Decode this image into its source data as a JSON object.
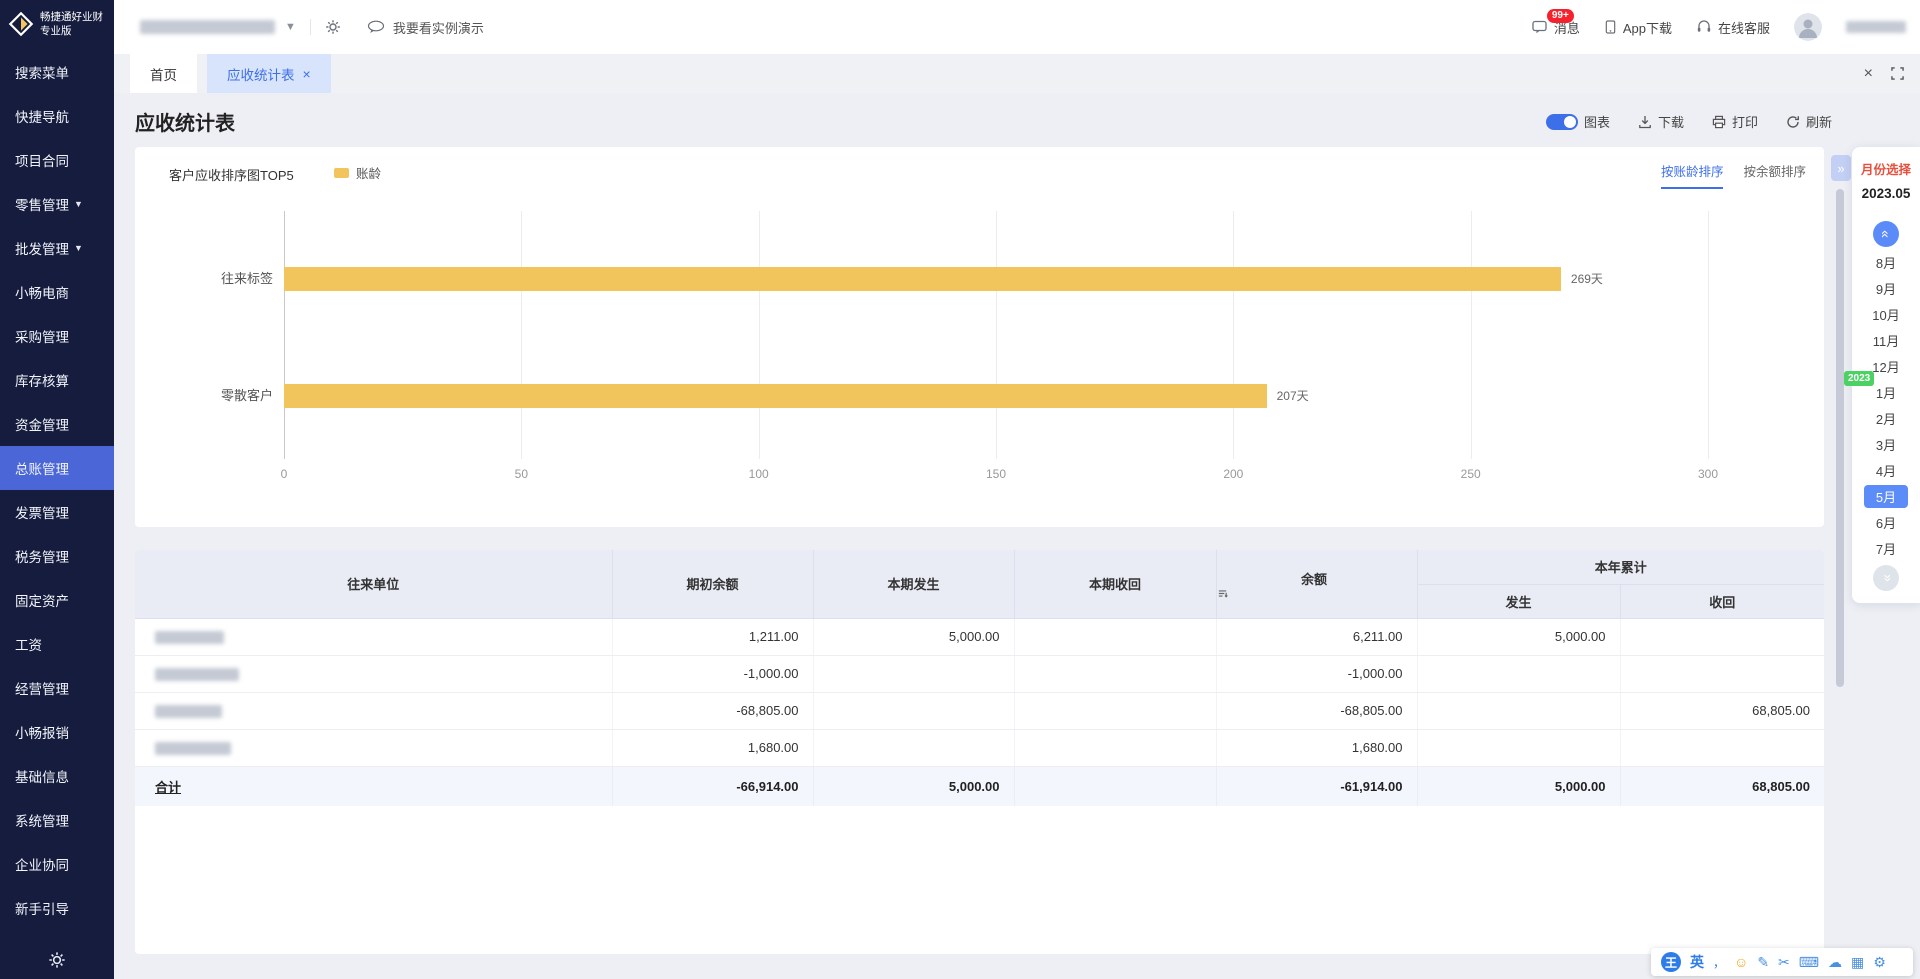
{
  "colors": {
    "sidebar_bg": "#151c3e",
    "accent_blue": "#3d6fe8",
    "nav_active_bg": "#4b66d6",
    "bar_yellow": "#f2c55c",
    "tab_active_bg": "#d8e4fb",
    "badge_red": "#f5222d",
    "month_selected_bg": "#5b8cf8",
    "month_title_red": "#e6503c",
    "year_badge_green": "#4cd263",
    "table_header_bg": "#e9ecf5",
    "total_row_bg": "#f3f6fd"
  },
  "brand": {
    "name_line1": "畅捷通好业财",
    "name_line2": "专业版"
  },
  "topbar": {
    "company_redacted": true,
    "demo_label": "我要看实例演示",
    "message_label": "消息",
    "message_badge": "99+",
    "app_download_label": "App下载",
    "service_label": "在线客服",
    "username_redacted": true
  },
  "sidebar": {
    "items": [
      {
        "label": "搜索菜单",
        "active": false,
        "arrow": false
      },
      {
        "label": "快捷导航",
        "active": false,
        "arrow": false
      },
      {
        "label": "项目合同",
        "active": false,
        "arrow": false
      },
      {
        "label": "零售管理",
        "active": false,
        "arrow": true
      },
      {
        "label": "批发管理",
        "active": false,
        "arrow": true
      },
      {
        "label": "小畅电商",
        "active": false,
        "arrow": false
      },
      {
        "label": "采购管理",
        "active": false,
        "arrow": false
      },
      {
        "label": "库存核算",
        "active": false,
        "arrow": false
      },
      {
        "label": "资金管理",
        "active": false,
        "arrow": false
      },
      {
        "label": "总账管理",
        "active": true,
        "arrow": false
      },
      {
        "label": "发票管理",
        "active": false,
        "arrow": false
      },
      {
        "label": "税务管理",
        "active": false,
        "arrow": false
      },
      {
        "label": "固定资产",
        "active": false,
        "arrow": false
      },
      {
        "label": "工资",
        "active": false,
        "arrow": false
      },
      {
        "label": "经营管理",
        "active": false,
        "arrow": false
      },
      {
        "label": "小畅报销",
        "active": false,
        "arrow": false
      },
      {
        "label": "基础信息",
        "active": false,
        "arrow": false
      },
      {
        "label": "系统管理",
        "active": false,
        "arrow": false
      },
      {
        "label": "企业协同",
        "active": false,
        "arrow": false
      },
      {
        "label": "新手引导",
        "active": false,
        "arrow": false
      }
    ]
  },
  "tabs": {
    "items": [
      {
        "label": "首页",
        "active": false,
        "closable": false
      },
      {
        "label": "应收统计表",
        "active": true,
        "closable": true
      }
    ]
  },
  "page": {
    "title": "应收统计表",
    "controls": {
      "chart_toggle_label": "图表",
      "download_label": "下载",
      "print_label": "打印",
      "refresh_label": "刷新"
    }
  },
  "chart": {
    "legend_title": "客户应收排序图TOP5",
    "series_name": "账龄",
    "sort_tabs": [
      {
        "label": "按账龄排序",
        "active": true
      },
      {
        "label": "按余额排序",
        "active": false
      }
    ],
    "chart_data": {
      "type": "bar",
      "orientation": "horizontal",
      "categories": [
        "往来标签",
        "零散客户"
      ],
      "values": [
        269,
        207
      ],
      "value_labels": [
        "269天",
        "207天"
      ],
      "series": [
        {
          "name": "账龄",
          "values": [
            269,
            207
          ]
        }
      ],
      "unit": "天",
      "x_ticks": [
        0,
        50,
        100,
        150,
        200,
        250,
        300
      ],
      "xlim": [
        0,
        300
      ],
      "grid": true,
      "series_color": "#f2c55c"
    }
  },
  "table": {
    "headers": {
      "col_partner": "往来单位",
      "col_beginning": "期初余额",
      "col_current": "本期发生",
      "col_received": "本期收回",
      "col_balance": "余额",
      "col_ytd": "本年累计",
      "col_ytd_occur": "发生",
      "col_ytd_received": "收回"
    },
    "rows": [
      {
        "name_redacted": true,
        "beginning": "1,211.00",
        "current": "5,000.00",
        "received": "",
        "balance": "6,211.00",
        "ytd_occur": "5,000.00",
        "ytd_received": ""
      },
      {
        "name_redacted": true,
        "beginning": "-1,000.00",
        "current": "",
        "received": "",
        "balance": "-1,000.00",
        "ytd_occur": "",
        "ytd_received": ""
      },
      {
        "name_redacted": true,
        "beginning": "-68,805.00",
        "current": "",
        "received": "",
        "balance": "-68,805.00",
        "ytd_occur": "",
        "ytd_received": "68,805.00"
      },
      {
        "name_redacted": true,
        "beginning": "1,680.00",
        "current": "",
        "received": "",
        "balance": "1,680.00",
        "ytd_occur": "",
        "ytd_received": ""
      }
    ],
    "total": {
      "label": "合计",
      "beginning": "-66,914.00",
      "current": "5,000.00",
      "received": "",
      "balance": "-61,914.00",
      "ytd_occur": "5,000.00",
      "ytd_received": "68,805.00"
    }
  },
  "month_panel": {
    "title": "月份选择",
    "current": "2023.05",
    "year_badge": "2023",
    "months": [
      {
        "label": "8月",
        "selected": false
      },
      {
        "label": "9月",
        "selected": false
      },
      {
        "label": "10月",
        "selected": false
      },
      {
        "label": "11月",
        "selected": false
      },
      {
        "label": "12月",
        "selected": false
      },
      {
        "label": "1月",
        "selected": false
      },
      {
        "label": "2月",
        "selected": false
      },
      {
        "label": "3月",
        "selected": false
      },
      {
        "label": "4月",
        "selected": false
      },
      {
        "label": "5月",
        "selected": true
      },
      {
        "label": "6月",
        "selected": false
      },
      {
        "label": "7月",
        "selected": false
      }
    ]
  },
  "ime": {
    "logo": "王",
    "lang": "英",
    "punct": "，",
    "icons": [
      "smiley",
      "pencil",
      "scissors",
      "keyboard",
      "cloud",
      "toolbox",
      "gear"
    ]
  }
}
